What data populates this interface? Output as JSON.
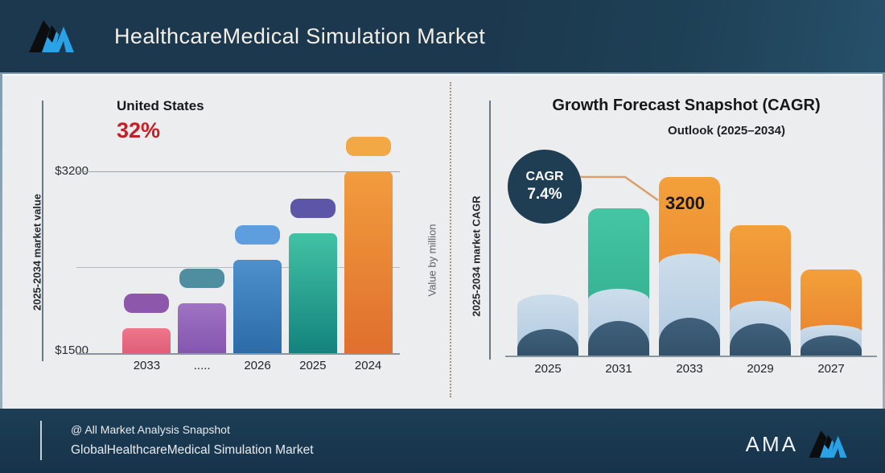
{
  "header": {
    "title": "HealthcareMedical Simulation Market",
    "logo": "ama-mountain-logo"
  },
  "middle_axis_label": "Value by million",
  "chart_data": [
    {
      "type": "bar",
      "region_label": "United States",
      "highlight_value": "32%",
      "highlight_color": "#c41e26",
      "ylabel": "2025-2034 market value",
      "xlabel": "",
      "ylim": [
        1500,
        3200
      ],
      "yticks": [
        {
          "label": "$3200",
          "value": 3200
        },
        {
          "label": "$1500",
          "value": 1500
        }
      ],
      "grid": "horizontal",
      "categories": [
        "2033",
        ".....",
        "2026",
        "2025",
        "2024"
      ],
      "values": [
        1730,
        1970,
        2370,
        2620,
        3200
      ],
      "bar_colors": [
        [
          "#ef768b",
          "#de5f78"
        ],
        [
          "#a173c4",
          "#8456ae"
        ],
        [
          "#4d90cc",
          "#2b6ca8"
        ],
        [
          "#42c2a4",
          "#13837d"
        ],
        [
          "#f29c3e",
          "#df6f2d"
        ]
      ],
      "floating_cap_colors": [
        "#8d57ac",
        "#4f8da0",
        "#5e9ede",
        "#5c55a8",
        "#f2a845"
      ]
    },
    {
      "type": "stacked-bar",
      "title": "Growth Forecast Snapshot (CAGR)",
      "subtitle": "Outlook (2025–2034)",
      "ylabel": "2025-2034 market CAGR",
      "xlabel": "",
      "badge": {
        "label": "CAGR",
        "value": "7.4%"
      },
      "annotation": {
        "text": "3200",
        "category": "2033"
      },
      "categories": [
        "2025",
        "2031",
        "2033",
        "2029",
        "2027"
      ],
      "series": [
        {
          "name": "base",
          "color": "navy",
          "values": [
            33,
            43,
            47,
            40,
            25
          ]
        },
        {
          "name": "middle",
          "color": "lightblue",
          "values": [
            43,
            40,
            80,
            28,
            13
          ]
        },
        {
          "name": "top",
          "colors": [
            "",
            "teal",
            "orange",
            "orange",
            "orange"
          ],
          "values": [
            0,
            100,
            95,
            94,
            69
          ]
        }
      ],
      "palette": {
        "navy": [
          "#40607b",
          "#33516a"
        ],
        "lightblue": [
          "#cdddeb",
          "#afc9e0"
        ],
        "teal": [
          "#45c6a3",
          "#2da88b"
        ],
        "orange": [
          "#f2a03a",
          "#e87e2e"
        ]
      },
      "connector_color": "#d8a06a"
    }
  ],
  "footer": {
    "line1": "@ All Market Analysis Snapshot",
    "line2": "GlobalHealthcareMedical Simulation Market",
    "brand": "AMA",
    "logo": "ama-mountain-logo"
  }
}
